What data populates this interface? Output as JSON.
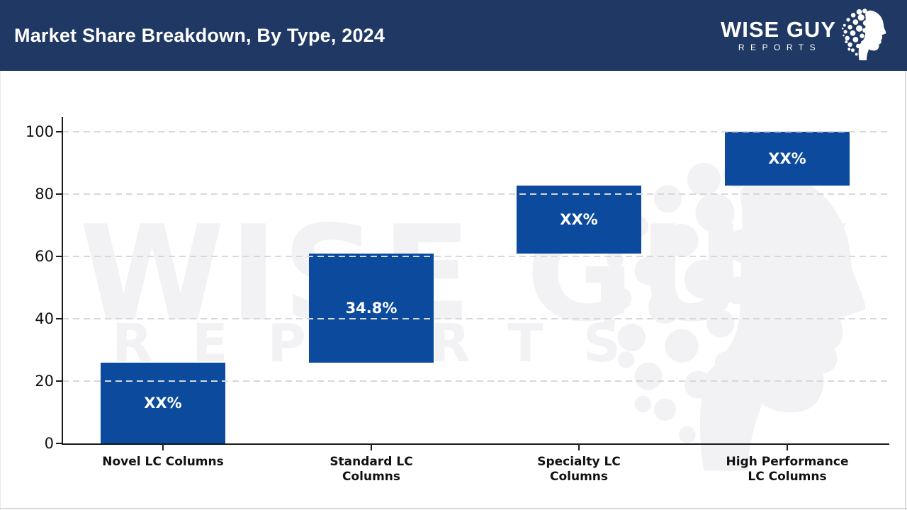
{
  "header": {
    "title": "Market Share Breakdown, By Type, 2024",
    "bg_color": "#1f3864",
    "logo": {
      "line1": "WISE GUY",
      "line2": "REPORTS"
    }
  },
  "watermark": {
    "line1": "WISE GUY",
    "line2": "REPORTS"
  },
  "chart_data": {
    "type": "bar",
    "subtype": "waterfall",
    "title": "Market Share Breakdown, By Type, 2024",
    "categories": [
      "Novel LC Columns",
      "Standard LC\nColumns",
      "Specialty LC\nColumns",
      "High Performance\nLC Columns"
    ],
    "segments": [
      {
        "category": "Novel LC Columns",
        "start": 0,
        "end": 26,
        "value_label": "XX%"
      },
      {
        "category": "Standard LC Columns",
        "start": 26,
        "end": 60.8,
        "value_label": "34.8%"
      },
      {
        "category": "Specialty LC Columns",
        "start": 60.8,
        "end": 82.8,
        "value_label": "XX%"
      },
      {
        "category": "High Performance LC Columns",
        "start": 82.8,
        "end": 100,
        "value_label": "XX%"
      }
    ],
    "ylim": [
      0,
      100
    ],
    "yticks": [
      "0",
      "20",
      "40",
      "60",
      "80",
      "100"
    ],
    "xlabel": "",
    "ylabel": "",
    "grid": "horizontal-dashed-over-bars",
    "legend": "none",
    "bar_color": "#0b4a9c",
    "note": "masked values shown as XX%"
  }
}
